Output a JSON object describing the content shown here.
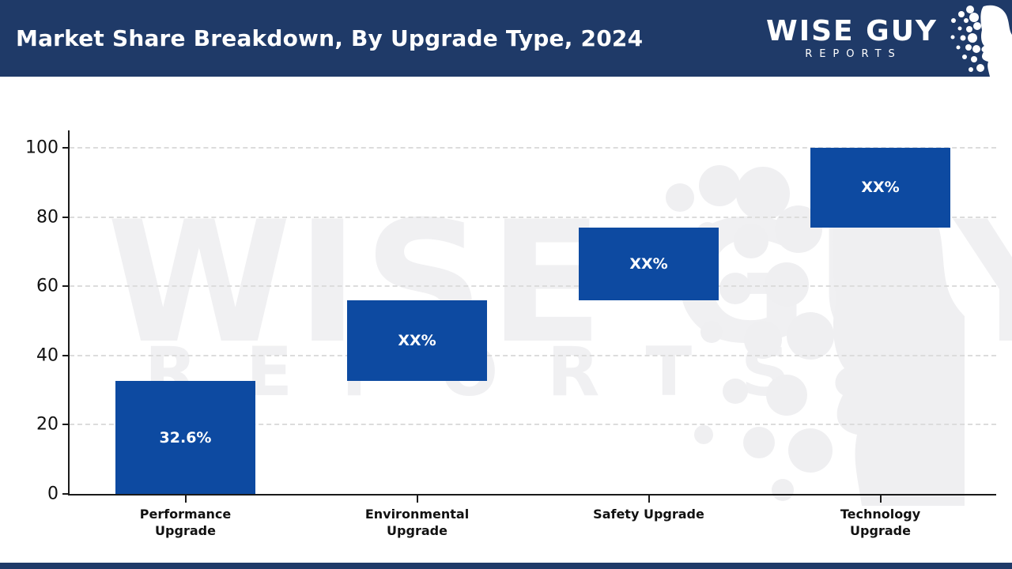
{
  "header": {
    "title": "Market Share Breakdown, By Upgrade Type, 2024",
    "brand_line1": "WISE GUY",
    "brand_line2": "REPORTS"
  },
  "watermark": {
    "line1": "WISE GUY",
    "line2": "REPORTS"
  },
  "colors": {
    "header_bg": "#1f3a68",
    "footer_bg": "#1f3a68",
    "bar": "#0d4aa1",
    "bar_label": "#ffffff",
    "grid": "#dcdcdc",
    "axis": "#1a1a1a",
    "watermark": "#f0f0f2"
  },
  "chart_data": {
    "type": "bar",
    "subtype": "waterfall",
    "title": "Market Share Breakdown, By Upgrade Type, 2024",
    "categories": [
      "Performance\nUpgrade",
      "Environmental\nUpgrade",
      "Safety Upgrade",
      "Technology Upgrade"
    ],
    "segments": [
      {
        "category": "Performance Upgrade",
        "start": 0,
        "end": 32.6,
        "label": "32.6%"
      },
      {
        "category": "Environmental Upgrade",
        "start": 32.6,
        "end": 56.0,
        "label": "XX%"
      },
      {
        "category": "Safety Upgrade",
        "start": 56.0,
        "end": 77.0,
        "label": "XX%"
      },
      {
        "category": "Technology Upgrade",
        "start": 77.0,
        "end": 100.0,
        "label": "XX%"
      }
    ],
    "xlabel": "",
    "ylabel": "",
    "ylim": [
      0,
      100
    ],
    "yticks": [
      0,
      20,
      40,
      60,
      80,
      100
    ],
    "grid": "horizontal-dashed",
    "legend": "none"
  }
}
